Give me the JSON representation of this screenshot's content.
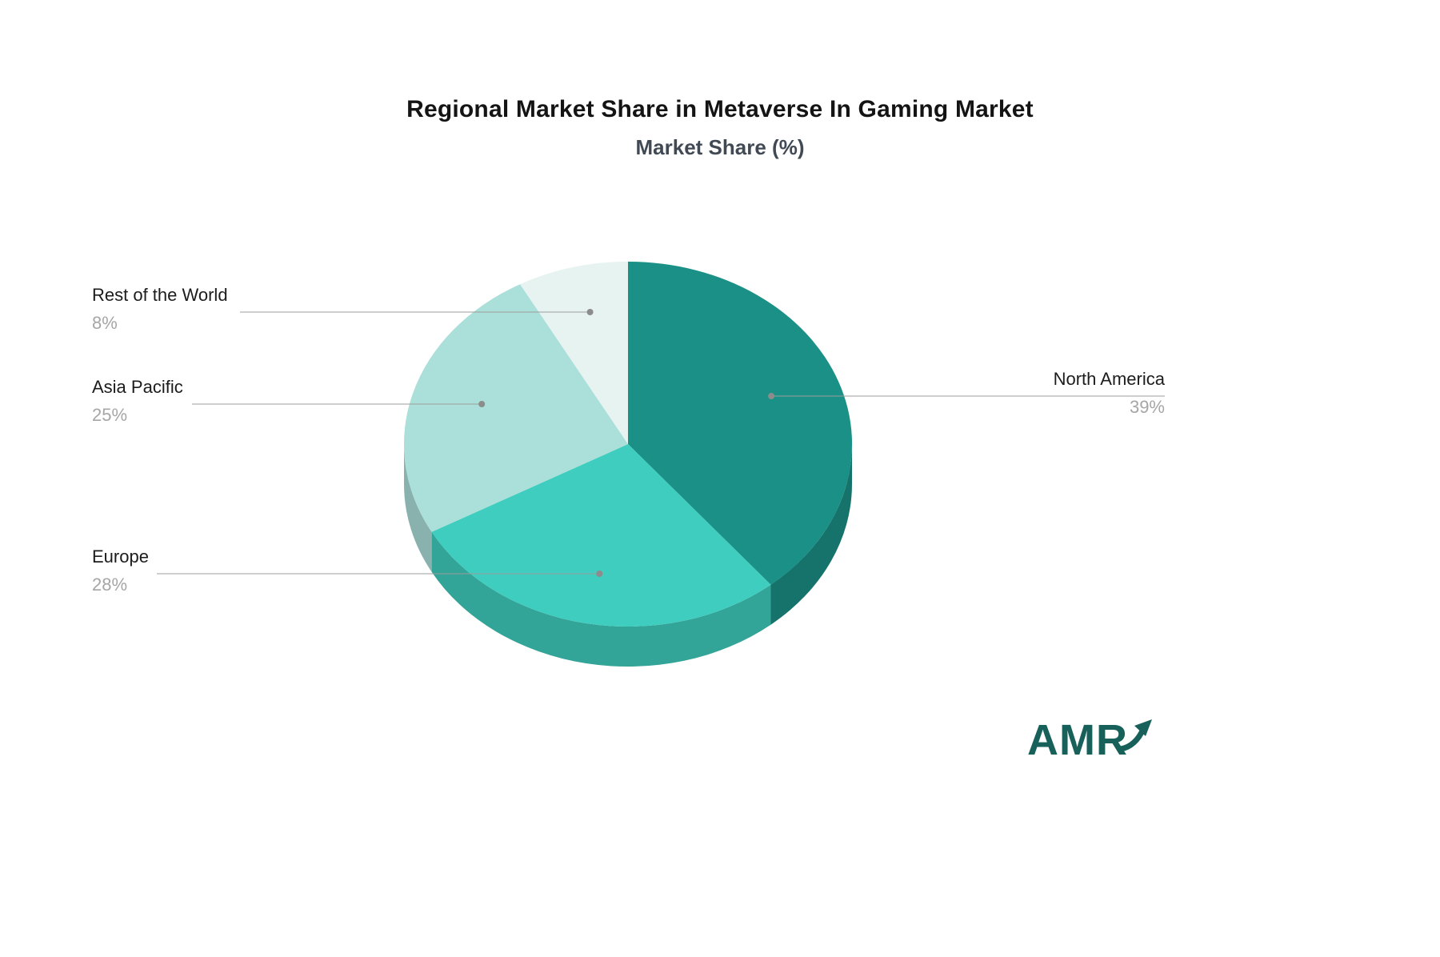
{
  "title": "Regional Market Share in Metaverse In Gaming Market",
  "subtitle": "Market Share (%)",
  "chart_data": {
    "type": "pie",
    "title": "Regional Market Share in Metaverse In Gaming Market",
    "subtitle": "Market Share (%)",
    "unit": "%",
    "effect": "3d",
    "start_angle_deg": 0,
    "direction": "clockwise",
    "legend_position": "callout-labels",
    "background_color": "#ffffff",
    "slices": [
      {
        "label": "North America",
        "value": 39,
        "display": "39%",
        "color": "#1b9086"
      },
      {
        "label": "Europe",
        "value": 28,
        "display": "28%",
        "color": "#3ecdbe"
      },
      {
        "label": "Asia Pacific",
        "value": 25,
        "display": "25%",
        "color": "#abdfd9"
      },
      {
        "label": "Rest of the World",
        "value": 8,
        "display": "8%",
        "color": "#e6f3f1"
      }
    ]
  },
  "logo": {
    "text": "AMR",
    "arrow_icon": "trend-up-arrow",
    "color": "#17615a"
  }
}
